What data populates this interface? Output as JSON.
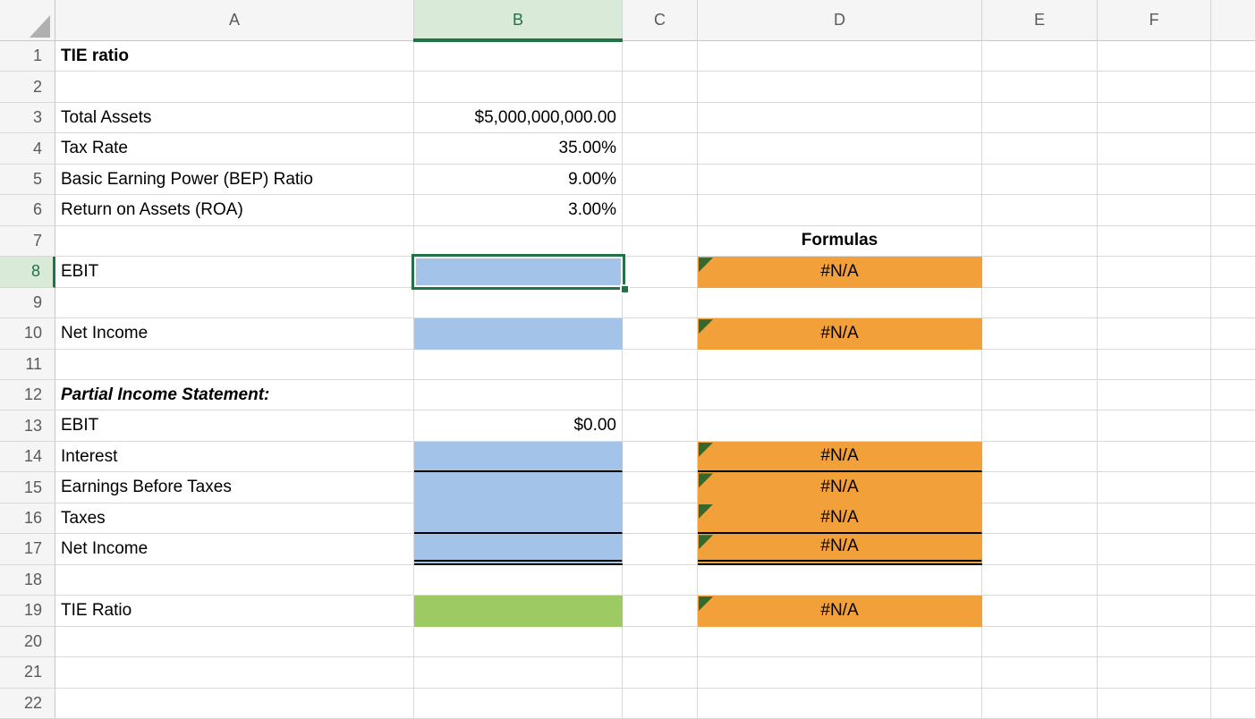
{
  "sheet": {
    "column_headers": [
      "A",
      "B",
      "C",
      "D",
      "E",
      "F"
    ],
    "rows": [
      "1",
      "2",
      "3",
      "4",
      "5",
      "6",
      "7",
      "8",
      "9",
      "10",
      "11",
      "12",
      "13",
      "14",
      "15",
      "16",
      "17",
      "18",
      "19",
      "20",
      "21",
      "22"
    ],
    "selection": {
      "cell": "B8",
      "column": "B",
      "row": 8
    },
    "cells": [
      {
        "ref": "A1",
        "text": "TIE ratio",
        "bold": true
      },
      {
        "ref": "A3",
        "text": "Total Assets"
      },
      {
        "ref": "B3",
        "text": "$5,000,000,000.00",
        "align": "right"
      },
      {
        "ref": "A4",
        "text": "Tax Rate"
      },
      {
        "ref": "B4",
        "text": "35.00%",
        "align": "right"
      },
      {
        "ref": "A5",
        "text": "Basic Earning Power (BEP) Ratio"
      },
      {
        "ref": "B5",
        "text": "9.00%",
        "align": "right"
      },
      {
        "ref": "A6",
        "text": "Return on Assets (ROA)"
      },
      {
        "ref": "B6",
        "text": "3.00%",
        "align": "right"
      },
      {
        "ref": "D7",
        "text": "Formulas",
        "bold": true,
        "align": "center"
      },
      {
        "ref": "A8",
        "text": "EBIT"
      },
      {
        "ref": "B8",
        "fill": "blue"
      },
      {
        "ref": "D8",
        "text": "#N/A",
        "fill": "orange",
        "align": "center",
        "error_marker": true
      },
      {
        "ref": "A10",
        "text": "Net Income"
      },
      {
        "ref": "B10",
        "fill": "blue"
      },
      {
        "ref": "D10",
        "text": "#N/A",
        "fill": "orange",
        "align": "center",
        "error_marker": true
      },
      {
        "ref": "A12",
        "text": "Partial Income Statement:",
        "bold": true,
        "italic": true
      },
      {
        "ref": "A13",
        "text": "EBIT"
      },
      {
        "ref": "B13",
        "text": "$0.00",
        "align": "right"
      },
      {
        "ref": "A14",
        "text": "Interest"
      },
      {
        "ref": "B14",
        "fill": "blue",
        "border_bottom": "single"
      },
      {
        "ref": "D14",
        "text": "#N/A",
        "fill": "orange",
        "align": "center",
        "error_marker": true,
        "border_bottom": "single"
      },
      {
        "ref": "A15",
        "text": "Earnings Before Taxes"
      },
      {
        "ref": "B15",
        "fill": "blue"
      },
      {
        "ref": "D15",
        "text": "#N/A",
        "fill": "orange",
        "align": "center",
        "error_marker": true
      },
      {
        "ref": "A16",
        "text": "Taxes"
      },
      {
        "ref": "B16",
        "fill": "blue",
        "border_bottom": "single"
      },
      {
        "ref": "D16",
        "text": "#N/A",
        "fill": "orange",
        "align": "center",
        "error_marker": true,
        "border_bottom": "single"
      },
      {
        "ref": "A17",
        "text": "Net Income"
      },
      {
        "ref": "B17",
        "fill": "blue",
        "border_bottom": "double"
      },
      {
        "ref": "D17",
        "text": "#N/A",
        "fill": "orange",
        "align": "center",
        "error_marker": true,
        "border_bottom": "double"
      },
      {
        "ref": "A19",
        "text": "TIE Ratio"
      },
      {
        "ref": "B19",
        "fill": "green"
      },
      {
        "ref": "D19",
        "text": "#N/A",
        "fill": "orange",
        "align": "center",
        "error_marker": true
      }
    ],
    "colors": {
      "fill_blue": "#A3C4E8",
      "fill_orange": "#F2A039",
      "fill_green": "#9ECA63",
      "selection_green": "#217346",
      "error_marker_green": "#34682C",
      "gridline": "#D9D9D9",
      "header_bg": "#F5F5F5",
      "header_selected_bg": "#D9EAD9",
      "header_text": "#5A5A5A",
      "cell_border_black": "#000000"
    }
  }
}
